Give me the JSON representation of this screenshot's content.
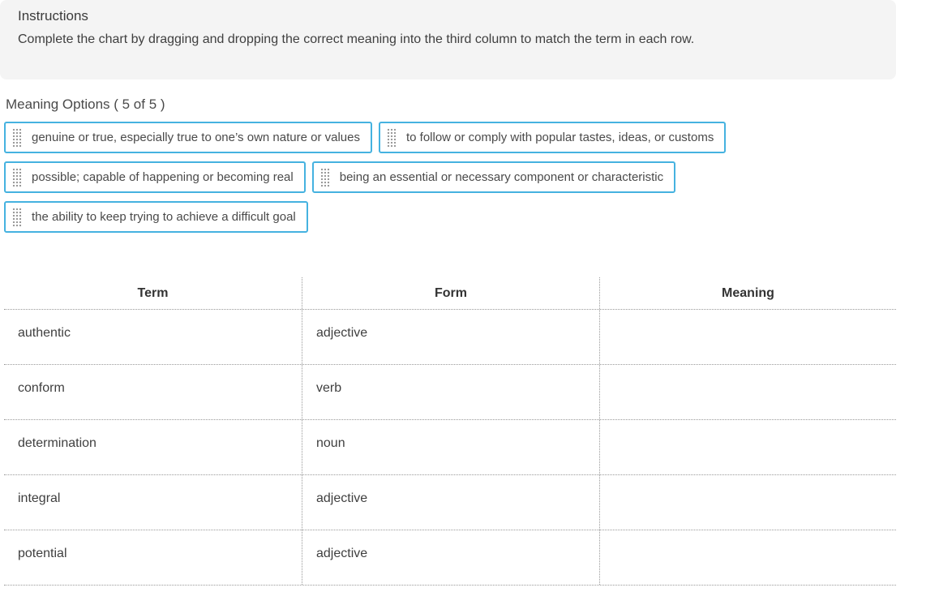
{
  "instructions": {
    "title": "Instructions",
    "body": "Complete the chart by dragging and dropping the correct meaning into the third column to match the term in each row."
  },
  "options": {
    "label": "Meaning Options ( 5 of 5 )",
    "items": [
      {
        "text": "genuine or true, especially true to one’s own nature or values"
      },
      {
        "text": "to follow or comply with popular tastes, ideas, or customs"
      },
      {
        "text": "possible; capable of happening or becoming real"
      },
      {
        "text": "being an essential or necessary component or characteristic"
      },
      {
        "text": "the ability to keep trying to achieve a difficult goal"
      }
    ]
  },
  "table": {
    "headers": [
      "Term",
      "Form",
      "Meaning"
    ],
    "rows": [
      {
        "term": "authentic",
        "form": "adjective",
        "meaning": ""
      },
      {
        "term": "conform",
        "form": "verb",
        "meaning": ""
      },
      {
        "term": "determination",
        "form": "noun",
        "meaning": ""
      },
      {
        "term": "integral",
        "form": "adjective",
        "meaning": ""
      },
      {
        "term": "potential",
        "form": "adjective",
        "meaning": ""
      }
    ]
  },
  "colors": {
    "accent_blue": "#45b2e0",
    "panel_background": "#f4f4f4",
    "dotted_border": "#999999",
    "text": "#3f3f3f"
  }
}
